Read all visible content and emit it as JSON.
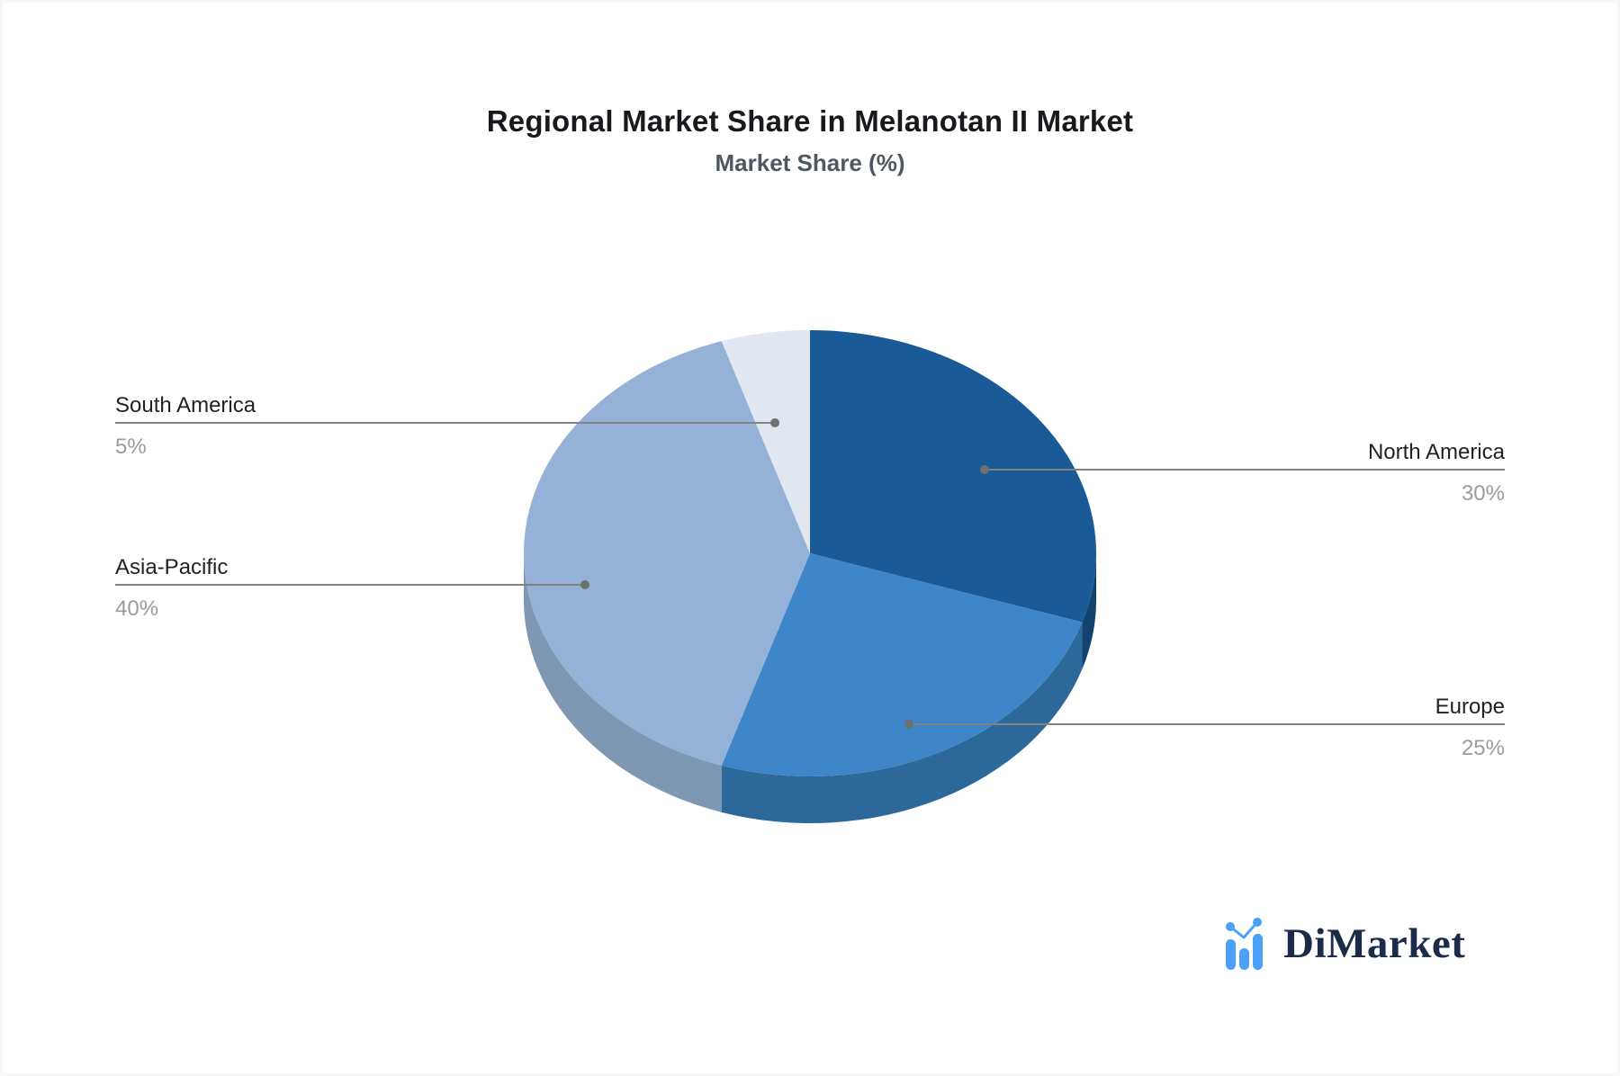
{
  "header": {
    "title": "Regional Market Share in Melanotan II Market",
    "subtitle": "Market Share (%)"
  },
  "chart_data": {
    "type": "pie",
    "style": "3d-pie",
    "title": "Regional Market Share in Melanotan II Market",
    "subtitle": "Market Share (%)",
    "unit": "%",
    "start_angle_deg": 0,
    "direction": "clockwise",
    "legend": "none",
    "connector_color": "#828282",
    "slices": [
      {
        "label": "North America",
        "value": 30,
        "pct_label": "30%",
        "color": "#1a5a96",
        "side_color": "#12436e",
        "label_side": "right"
      },
      {
        "label": "Europe",
        "value": 25,
        "pct_label": "25%",
        "color": "#3e86c8",
        "side_color": "#2d689b",
        "label_side": "right"
      },
      {
        "label": "Asia-Pacific",
        "value": 40,
        "pct_label": "40%",
        "color": "#94b2d7",
        "side_color": "#7e97b2",
        "label_side": "left"
      },
      {
        "label": "South America",
        "value": 5,
        "pct_label": "5%",
        "color": "#e0e7f0",
        "side_color": "#c8d2df",
        "label_side": "left"
      }
    ]
  },
  "branding": {
    "logo_text": "DiMarket",
    "logo_icon": "bar-chart-icon",
    "icon_color": "#4da0f7",
    "text_color": "#1b2b4a"
  }
}
